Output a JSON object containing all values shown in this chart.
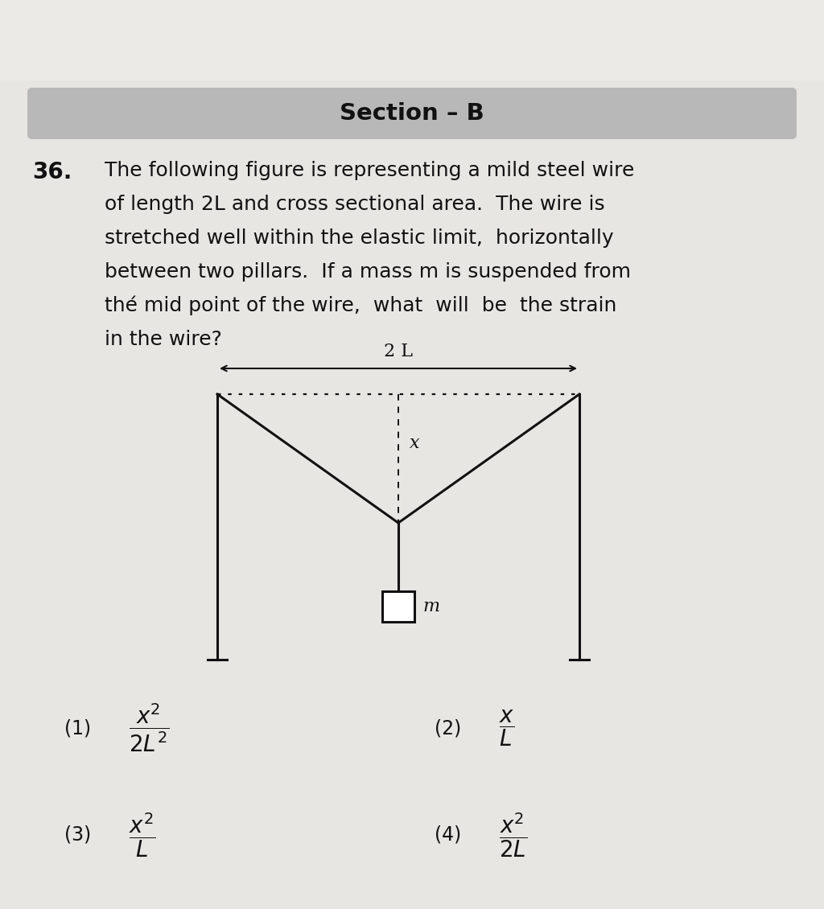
{
  "bg_color": "#e8e6e2",
  "page_top_bg": "#f0eeeb",
  "section_banner_color": "#b8b8b8",
  "section_title": "Section – B",
  "question_number": "36.",
  "question_lines": [
    "The following figure is representing a mild steel wire",
    "of length 2L and cross sectional area.  The wire is",
    "stretched well within the elastic limit,  horizontally",
    "between two pillars.  If a mass m is suspended from",
    "thé mid point of the wire,  what  will  be  the strain",
    "in the wire?"
  ],
  "arrow_label": "2 L",
  "x_label": "x",
  "m_label": "m",
  "line_color": "#111111",
  "text_color": "#111111",
  "banner_text_color": "#111111"
}
